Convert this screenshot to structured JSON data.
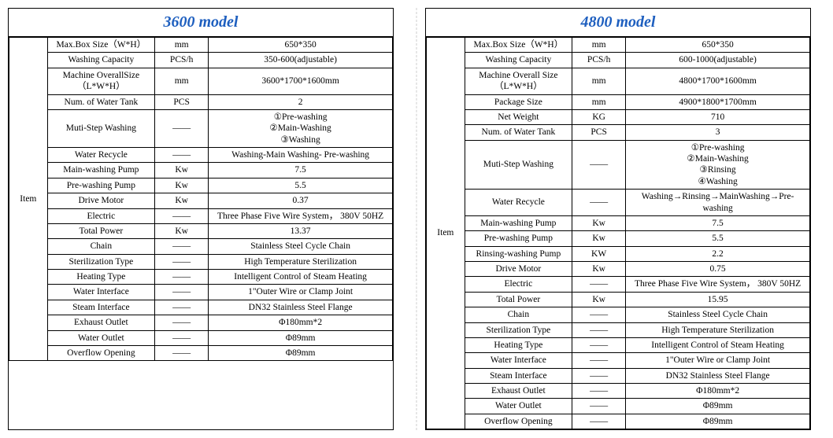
{
  "colors": {
    "title": "#1e5fbf",
    "border": "#000000",
    "background": "#ffffff",
    "separator": "#cccccc"
  },
  "fonts": {
    "title_size": 20,
    "body_size": 11.5,
    "family": "Times New Roman"
  },
  "left": {
    "title": "3600 model",
    "item_label": "Item",
    "rows": [
      {
        "p": "Max.Box Size（W*H）",
        "u": "mm",
        "v": "650*350"
      },
      {
        "p": "Washing Capacity",
        "u": "PCS/h",
        "v": "350-600(adjustable)"
      },
      {
        "p": "Machine OverallSize（L*W*H）",
        "u": "mm",
        "v": "3600*1700*1600mm"
      },
      {
        "p": "Num. of Water Tank",
        "u": "PCS",
        "v": "2"
      },
      {
        "p": "Muti-Step Washing",
        "u": "——",
        "v": "①Pre-washing\n②Main-Washing\n③Washing"
      },
      {
        "p": "Water Recycle",
        "u": "——",
        "v": "Washing-Main Washing- Pre-washing"
      },
      {
        "p": "Main-washing Pump",
        "u": "Kw",
        "v": "7.5"
      },
      {
        "p": "Pre-washing Pump",
        "u": "Kw",
        "v": "5.5"
      },
      {
        "p": "Drive Motor",
        "u": "Kw",
        "v": "0.37"
      },
      {
        "p": "Electric",
        "u": "——",
        "v": "Three Phase Five Wire System， 380V 50HZ"
      },
      {
        "p": "Total Power",
        "u": "Kw",
        "v": "13.37"
      },
      {
        "p": "Chain",
        "u": "——",
        "v": "Stainless Steel Cycle Chain"
      },
      {
        "p": "Sterilization Type",
        "u": "——",
        "v": "High Temperature Sterilization"
      },
      {
        "p": "Heating Type",
        "u": "——",
        "v": "Intelligent Control of Steam Heating"
      },
      {
        "p": "Water Interface",
        "u": "——",
        "v": "1\"Outer Wire or Clamp Joint"
      },
      {
        "p": "Steam Interface",
        "u": "——",
        "v": "DN32 Stainless Steel Flange"
      },
      {
        "p": "Exhaust Outlet",
        "u": "——",
        "v": "Φ180mm*2"
      },
      {
        "p": "Water Outlet",
        "u": "——",
        "v": "Φ89mm"
      },
      {
        "p": "Overflow Opening",
        "u": "——",
        "v": "Φ89mm"
      }
    ]
  },
  "right": {
    "title": "4800 model",
    "item_label": "Item",
    "rows": [
      {
        "p": "Max.Box Size（W*H）",
        "u": "mm",
        "v": "650*350"
      },
      {
        "p": "Washing Capacity",
        "u": "PCS/h",
        "v": "600-1000(adjustable)"
      },
      {
        "p": "Machine Overall Size（L*W*H）",
        "u": "mm",
        "v": "4800*1700*1600mm"
      },
      {
        "p": "Package Size",
        "u": "mm",
        "v": "4900*1800*1700mm"
      },
      {
        "p": "Net Weight",
        "u": "KG",
        "v": "710"
      },
      {
        "p": "Num. of Water Tank",
        "u": "PCS",
        "v": "3"
      },
      {
        "p": "Muti-Step Washing",
        "u": "——",
        "v": "①Pre-washing\n②Main-Washing\n③Rinsing\n④Washing"
      },
      {
        "p": "Water Recycle",
        "u": "——",
        "v": "Washing→Rinsing→MainWashing→Pre-washing"
      },
      {
        "p": "Main-washing Pump",
        "u": "Kw",
        "v": "7.5"
      },
      {
        "p": "Pre-washing Pump",
        "u": "Kw",
        "v": "5.5"
      },
      {
        "p": "Rinsing-washing Pump",
        "u": "KW",
        "v": "2.2"
      },
      {
        "p": "Drive Motor",
        "u": "Kw",
        "v": "0.75"
      },
      {
        "p": "Electric",
        "u": "——",
        "v": "Three Phase Five Wire System， 380V 50HZ"
      },
      {
        "p": "Total Power",
        "u": "Kw",
        "v": "15.95"
      },
      {
        "p": "Chain",
        "u": "——",
        "v": "Stainless Steel Cycle Chain"
      },
      {
        "p": "Sterilization Type",
        "u": "——",
        "v": "High Temperature Sterilization"
      },
      {
        "p": "Heating Type",
        "u": "——",
        "v": "Intelligent Control of Steam Heating"
      },
      {
        "p": "Water Interface",
        "u": "——",
        "v": "1\"Outer Wire or Clamp Joint"
      },
      {
        "p": "Steam Interface",
        "u": "——",
        "v": "DN32 Stainless Steel Flange"
      },
      {
        "p": "Exhaust Outlet",
        "u": "——",
        "v": "Φ180mm*2"
      },
      {
        "p": "Water Outlet",
        "u": "——",
        "v": "Φ89mm"
      },
      {
        "p": "Overflow Opening",
        "u": "——",
        "v": "Φ89mm"
      }
    ]
  }
}
